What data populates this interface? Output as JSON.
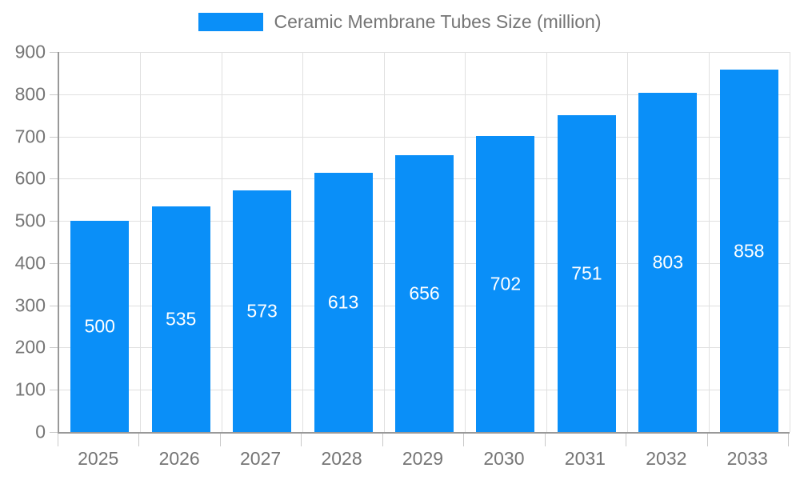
{
  "chart_data": {
    "type": "bar",
    "title": "Ceramic Membrane Tubes Size (million)",
    "categories": [
      "2025",
      "2026",
      "2027",
      "2028",
      "2029",
      "2030",
      "2031",
      "2032",
      "2033"
    ],
    "values": [
      500,
      535,
      573,
      613,
      656,
      702,
      751,
      803,
      858
    ],
    "xlabel": "",
    "ylabel": "",
    "ylim": [
      0,
      900
    ],
    "ytick_step": 100,
    "ytick_labels": [
      "0",
      "100",
      "200",
      "300",
      "400",
      "500",
      "600",
      "700",
      "800",
      "900"
    ],
    "grid": "on",
    "legend_position": "top-center",
    "value_labels": "inside-center",
    "colors": {
      "bar": "#0a8ff8",
      "bar_value_text": "#ffffff",
      "axis_line": "#999999",
      "tick_line": "#c9c9c9",
      "grid_line": "#e0e0e0",
      "axis_text": "#757575",
      "background": "#ffffff"
    }
  }
}
